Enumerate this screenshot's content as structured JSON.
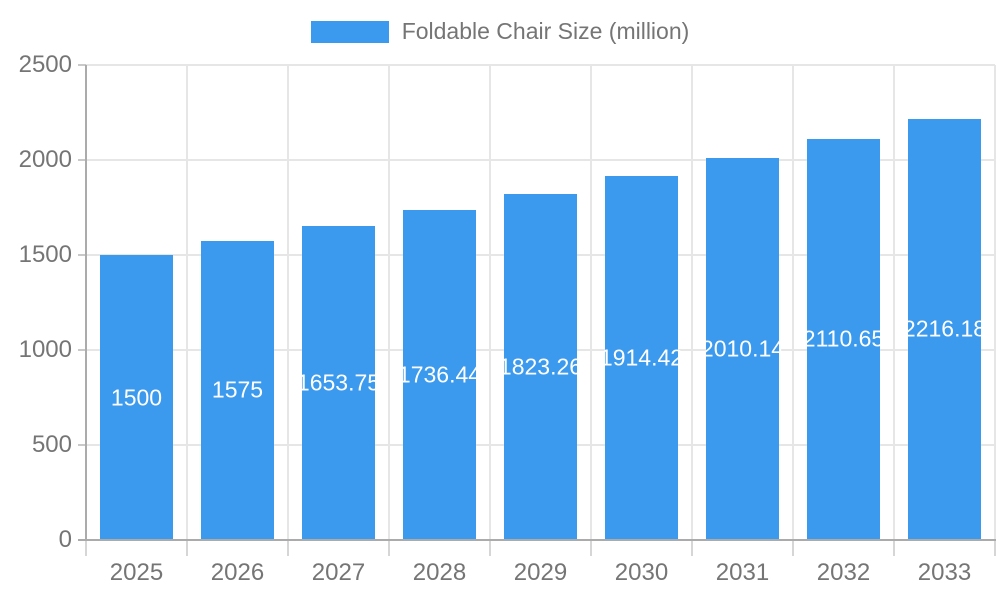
{
  "legend": {
    "label": "Foldable Chair Size (million)"
  },
  "chart_data": {
    "type": "bar",
    "title": "Foldable Chair Size (million)",
    "categories": [
      "2025",
      "2026",
      "2027",
      "2028",
      "2029",
      "2030",
      "2031",
      "2032",
      "2033"
    ],
    "values": [
      1500,
      1575,
      1653.75,
      1736.44,
      1823.26,
      1914.42,
      2010.14,
      2110.65,
      2216.18
    ],
    "bar_labels": [
      "1500",
      "1575",
      "1653.75",
      "1736.44",
      "1823.26",
      "1914.42",
      "2010.14",
      "2110.65",
      "2216.18"
    ],
    "xlabel": "",
    "ylabel": "",
    "ylim": [
      0,
      2500
    ],
    "y_ticks": [
      0,
      500,
      1000,
      1500,
      2000,
      2500
    ],
    "y_tick_labels": [
      "0",
      "500",
      "1000",
      "1500",
      "2000",
      "2500"
    ],
    "grid": true,
    "legend_position": "top",
    "colors": {
      "bar": "#3b9aee",
      "bar_label_text": "#ffffff",
      "axis_text": "#757575",
      "grid_line": "#e6e6e6",
      "axis_line": "#ababab"
    }
  }
}
